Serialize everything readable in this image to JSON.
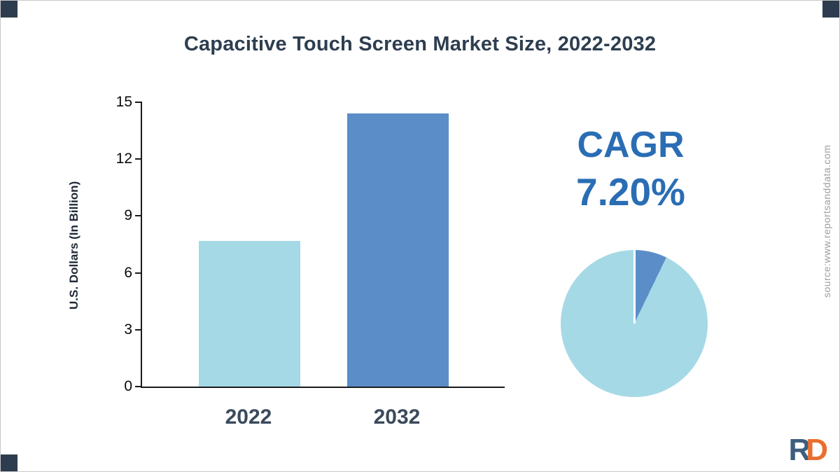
{
  "title": "Capacitive Touch Screen Market Size, 2022-2032",
  "chart_data": [
    {
      "type": "bar",
      "title": "Capacitive Touch Screen Market Size, 2022-2032",
      "categories": [
        "2022",
        "2032"
      ],
      "values": [
        7.7,
        14.4
      ],
      "xlabel": "",
      "ylabel": "U.S. Dollars (In Billion)",
      "ylim": [
        0,
        15
      ],
      "yticks": [
        0,
        3,
        6,
        9,
        12,
        15
      ],
      "bar_colors": [
        "#a5d9e6",
        "#5b8dc9"
      ],
      "grid": false,
      "legend": "none"
    },
    {
      "type": "pie",
      "start_angle_deg": 0,
      "direction": "clockwise",
      "slices": [
        {
          "label": "CAGR",
          "value": 7.2,
          "color": "#5b8dc9"
        },
        {
          "label": "remainder",
          "value": 92.8,
          "color": "#a5d9e6"
        }
      ]
    }
  ],
  "cagr": {
    "label": "CAGR",
    "value": "7.20%",
    "percent": 7.2
  },
  "watermark": {
    "source": "source:www.reportsanddata.com"
  },
  "logo": {
    "r": "R",
    "d": "D"
  },
  "colors": {
    "light_blue": "#a5d9e6",
    "dark_blue": "#5b8dc9",
    "title_text": "#2d3e50",
    "cagr_text": "#2a6db4",
    "axis": "#1a1a1a",
    "corner_mark": "#2d3c4e",
    "source_text": "#9e9e9e",
    "logo_r": "#3f5d7d",
    "logo_d": "#ea6f2e"
  }
}
